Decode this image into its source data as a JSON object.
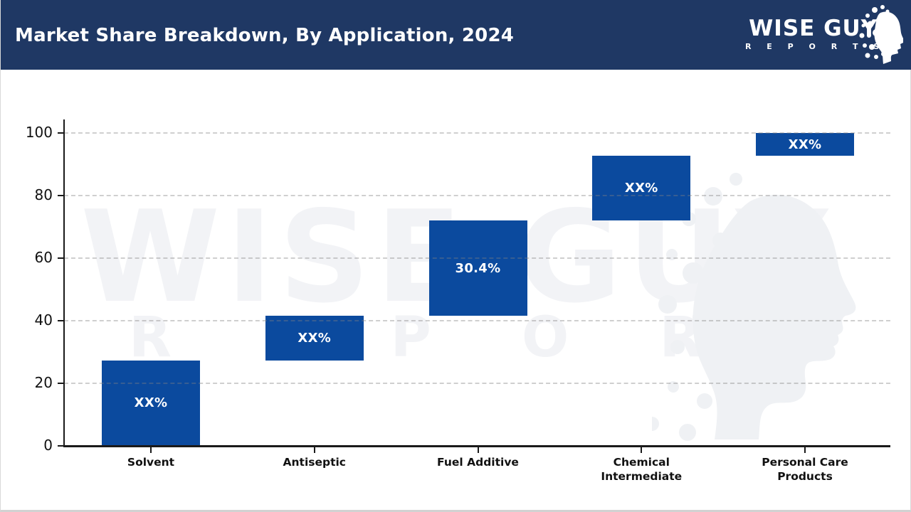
{
  "header": {
    "title": "Market Share Breakdown, By Application, 2024",
    "background_color": "#1f3864",
    "logo": {
      "line1": "WISE GUY",
      "line2": "R E P O R T S"
    }
  },
  "watermark": {
    "line1": "WISE GUY",
    "line2": "R E P O R T S"
  },
  "chart_data": {
    "type": "bar",
    "subtype": "waterfall-segmented-columns",
    "title": "Market Share Breakdown, By Application, 2024",
    "categories": [
      "Solvent",
      "Antiseptic",
      "Fuel Additive",
      "Chemical Intermediate",
      "Personal Care Products"
    ],
    "segments": [
      {
        "category": "Solvent",
        "start": 0,
        "end": 27.3,
        "label": "XX%"
      },
      {
        "category": "Antiseptic",
        "start": 27.3,
        "end": 41.6,
        "label": "XX%"
      },
      {
        "category": "Fuel Additive",
        "start": 41.6,
        "end": 72.0,
        "label": "30.4%"
      },
      {
        "category": "Chemical Intermediate",
        "start": 72.0,
        "end": 92.7,
        "label": "XX%"
      },
      {
        "category": "Personal Care Products",
        "start": 92.7,
        "end": 100,
        "label": "XX%"
      }
    ],
    "yticks": [
      0,
      20,
      40,
      60,
      80,
      100
    ],
    "ylim": [
      0,
      100
    ],
    "xlabel": "",
    "ylabel": "",
    "grid": "horizontal-dashed",
    "legend": "none",
    "bar_color": "#0b4a9e",
    "bar_label_color": "#ffffff"
  }
}
